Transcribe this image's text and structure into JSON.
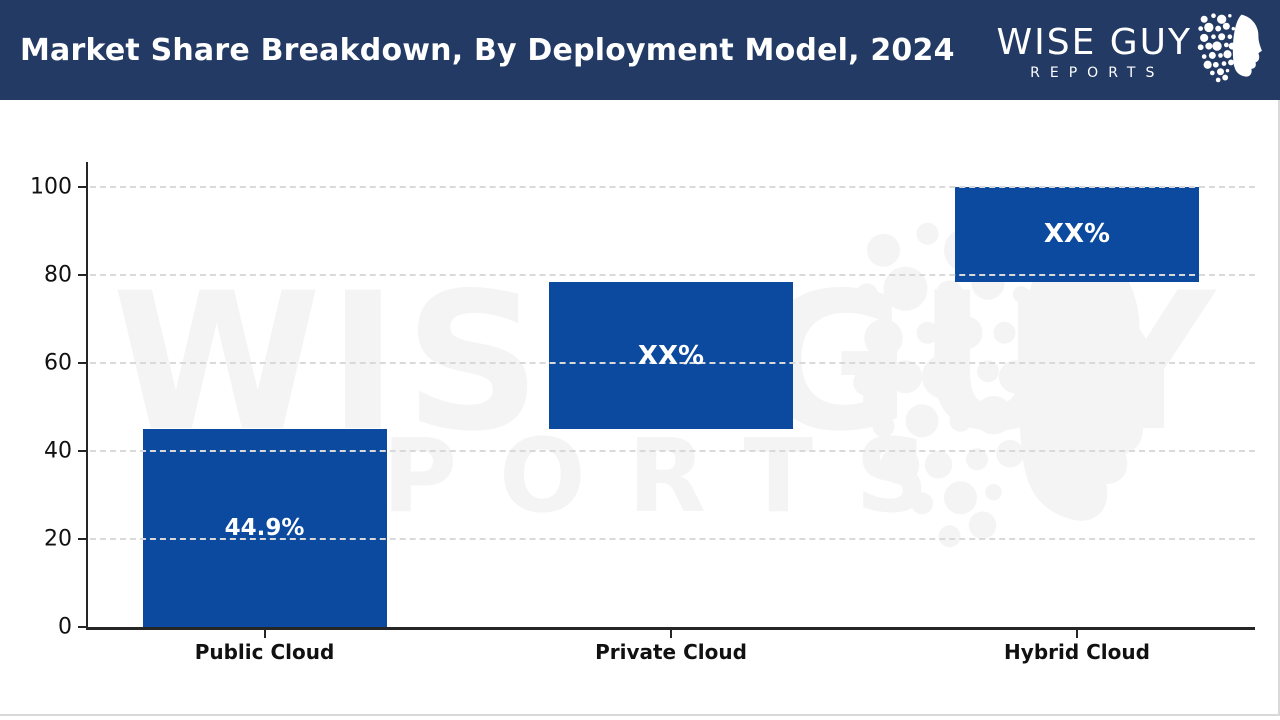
{
  "header": {
    "title": "Market Share Breakdown, By Deployment Model, 2024",
    "logo": {
      "line1": "WISE GUY",
      "line2": "REPORTS"
    }
  },
  "watermark": {
    "line1": "WISE GUY",
    "line2": "REPORTS"
  },
  "chart_data": {
    "type": "bar",
    "variant": "floating-stacked-breakdown",
    "title": "Market Share Breakdown, By Deployment Model, 2024",
    "categories": [
      "Public Cloud",
      "Private Cloud",
      "Hybrid Cloud"
    ],
    "segments": [
      {
        "category": "Public Cloud",
        "start": 0,
        "end": 44.9,
        "value_label": "44.9%"
      },
      {
        "category": "Private Cloud",
        "start": 44.9,
        "end": 78.5,
        "value_label": "XX%"
      },
      {
        "category": "Hybrid Cloud",
        "start": 78.5,
        "end": 100,
        "value_label": "XX%"
      }
    ],
    "yticks": [
      0,
      20,
      40,
      60,
      80,
      100
    ],
    "ylim": [
      0,
      105
    ],
    "grid": {
      "axis": "y",
      "style": "dashed",
      "color": "#d9d9d9"
    },
    "legend": null,
    "bar_color": "#0b4a9e",
    "bar_label_color": "#ffffff",
    "axis_color": "#262626",
    "header_color": "#223a64",
    "watermark_color": "#f4f4f4"
  }
}
